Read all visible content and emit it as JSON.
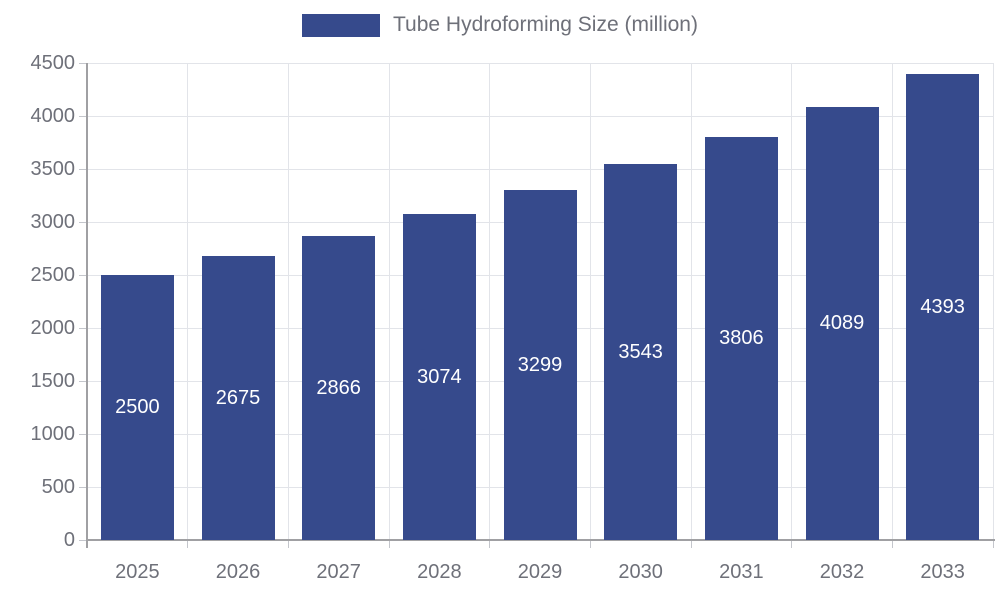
{
  "chart_data": {
    "type": "bar",
    "title": "Tube Hydroforming Size (million)",
    "series_name": "Tube Hydroforming Size (million)",
    "categories": [
      "2025",
      "2026",
      "2027",
      "2028",
      "2029",
      "2030",
      "2031",
      "2032",
      "2033"
    ],
    "values": [
      2500,
      2675,
      2866,
      3074,
      3299,
      3543,
      3806,
      4089,
      4393
    ],
    "xlabel": "",
    "ylabel": "",
    "ylim": [
      0,
      4500
    ],
    "y_ticks": [
      0,
      500,
      1000,
      1500,
      2000,
      2500,
      3000,
      3500,
      4000,
      4500
    ],
    "grid": true,
    "legend_position": "top",
    "value_labels": "inside-center"
  },
  "colors": {
    "bar": "#364A8C",
    "axis_line": "#A0A0A3",
    "gridline": "#E2E4E9",
    "tick": "#C4C6CC",
    "axis_text": "#6E7079",
    "value_label_text": "#FFFFFF",
    "background": "#FFFFFF"
  }
}
